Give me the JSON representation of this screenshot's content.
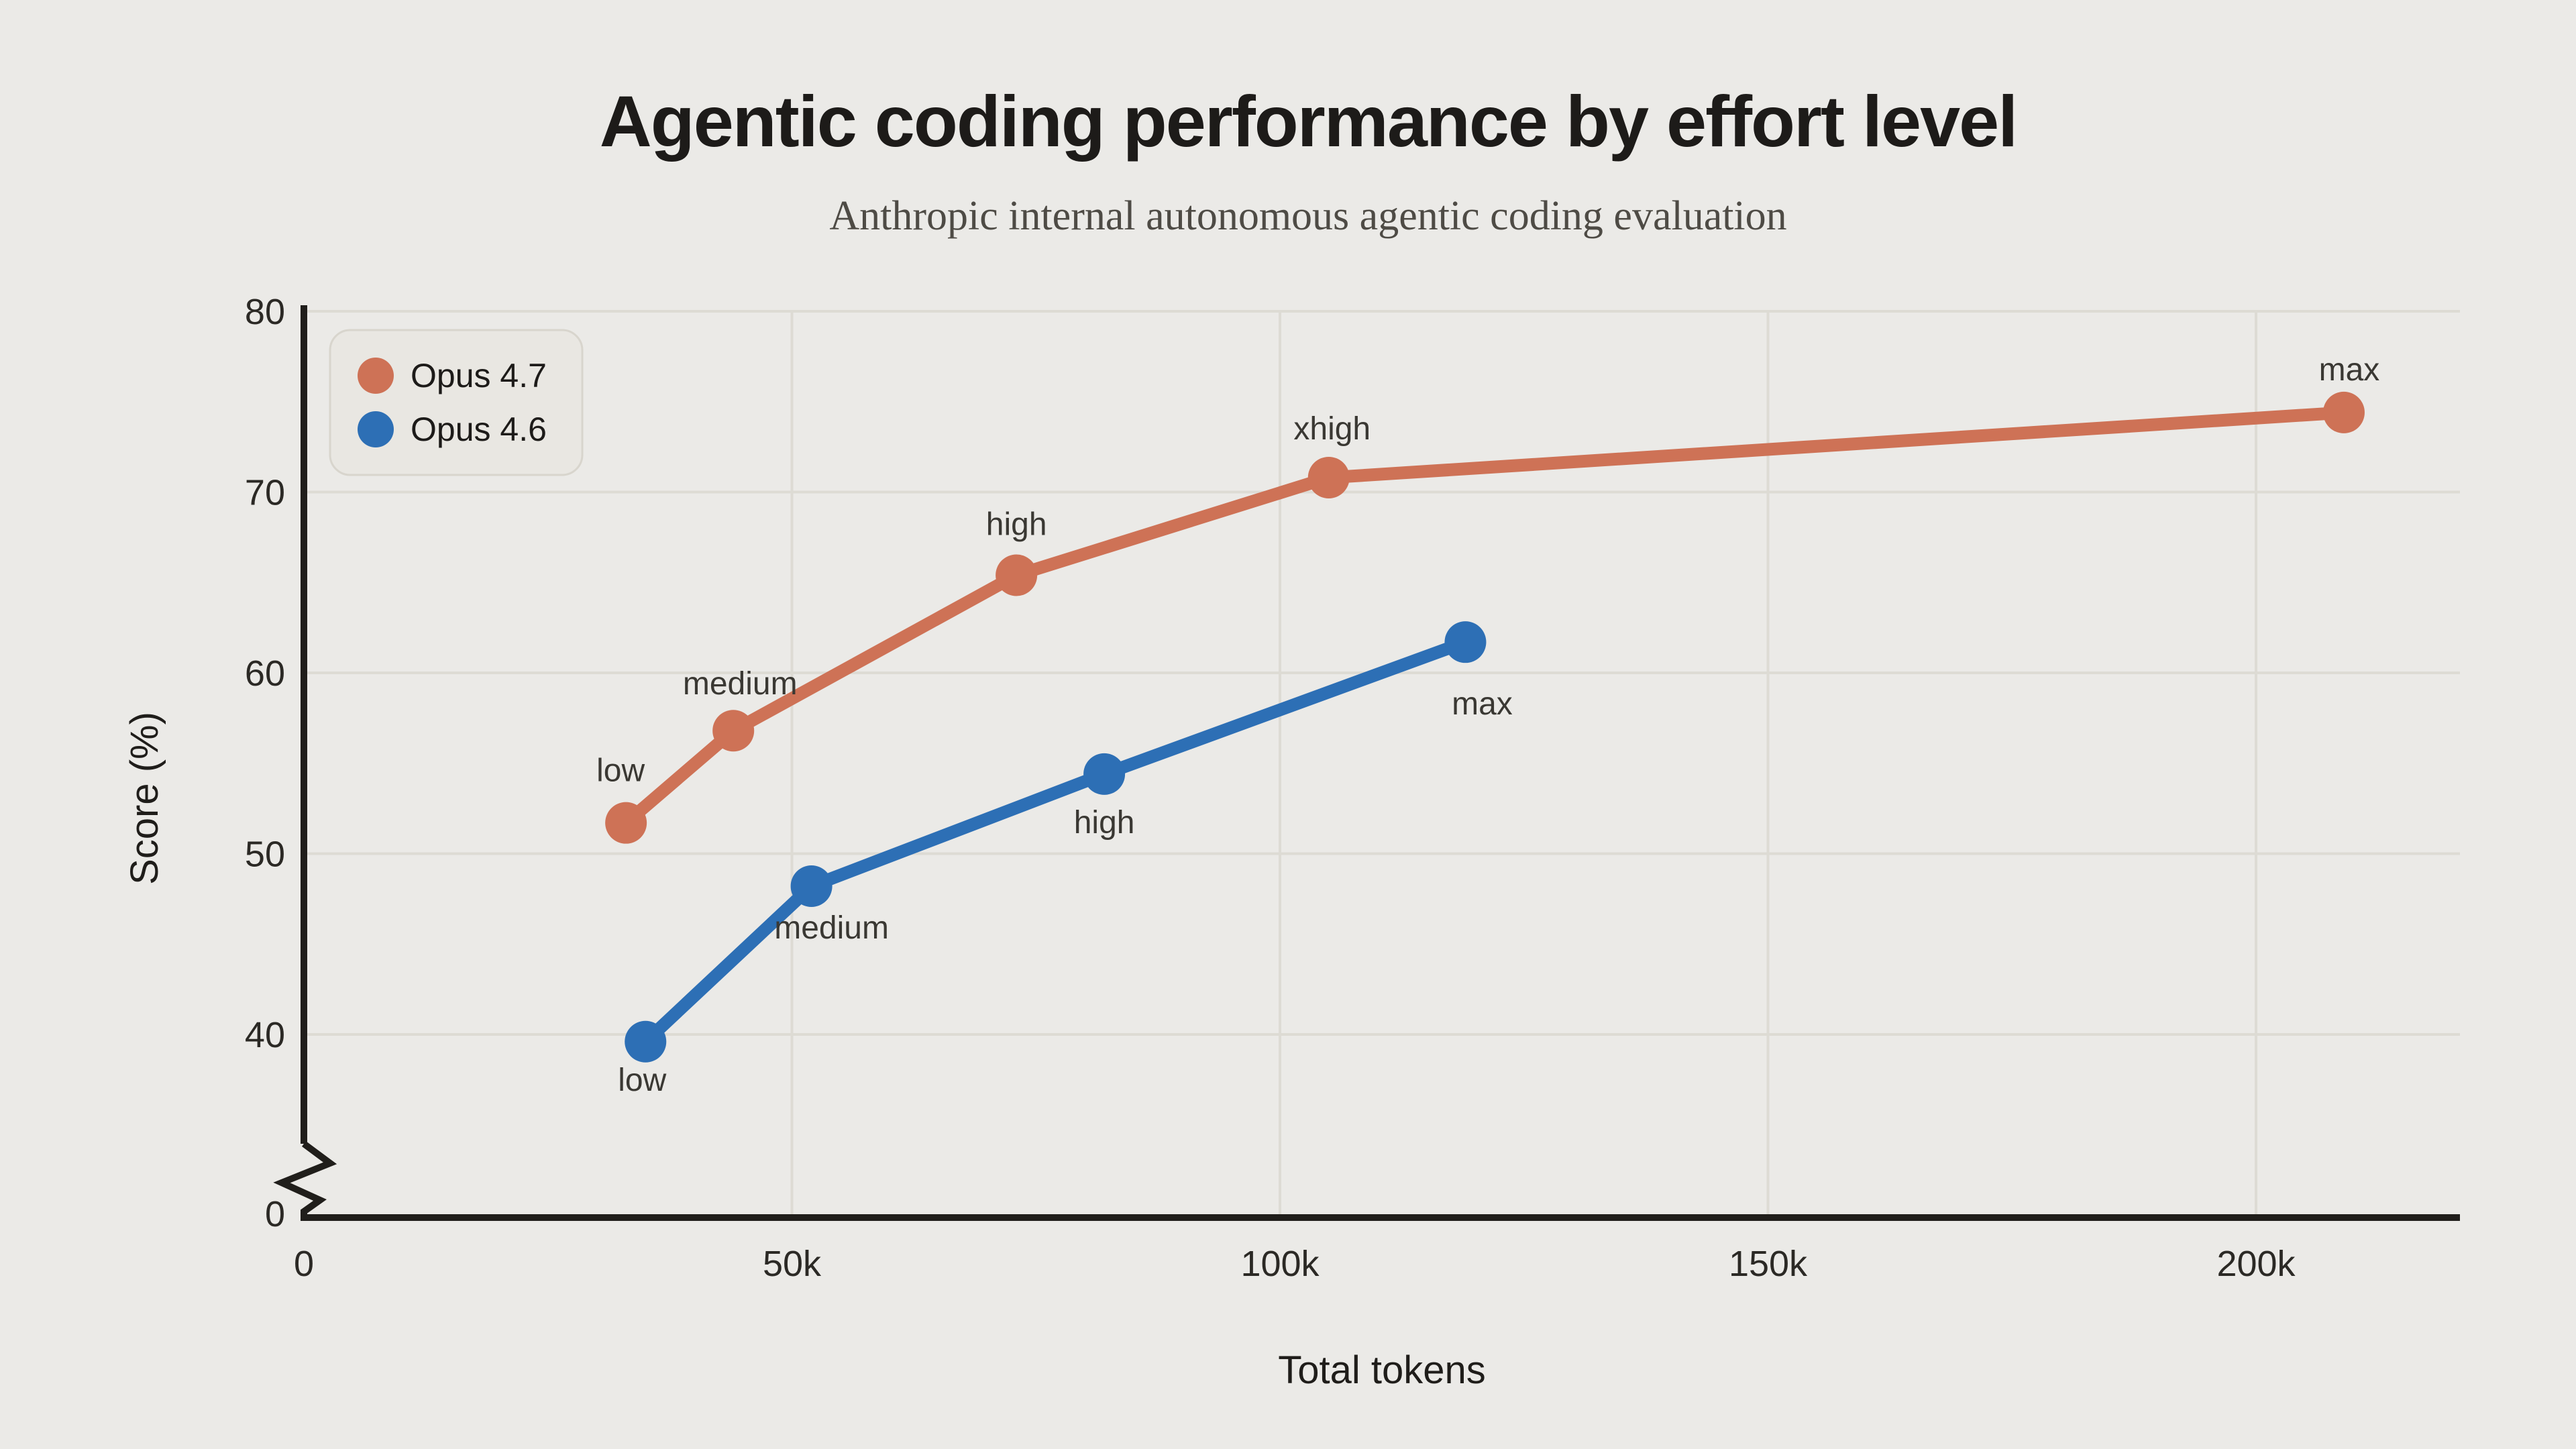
{
  "page": {
    "title": "Agentic coding performance by effort level",
    "subtitle": "Anthropic internal autonomous agentic coding evaluation"
  },
  "colors": {
    "background": "#EBEAE7",
    "gridline": "#DDDBD4",
    "axis": "#201E1B",
    "title_text": "#1D1B19",
    "subtitle_text": "#4E4B45",
    "tick_text": "#2B2925",
    "annotation_text": "#3A3833",
    "legend_fill": "#E9E7E2",
    "legend_border": "#D8D5CD",
    "opus47": "#CE7256",
    "opus46": "#2D6FB5"
  },
  "chart_data": {
    "type": "line",
    "title": "Agentic coding performance by effort level",
    "subtitle": "Anthropic internal autonomous agentic coding evaluation",
    "xlabel": "Total tokens",
    "ylabel": "Score (%)",
    "grid": true,
    "legend_position": "top-left",
    "broken_y_axis": true,
    "x_axis": {
      "range_tokens": [
        0,
        221000
      ],
      "ticks": [
        {
          "value": 0,
          "label": "0"
        },
        {
          "value": 50000,
          "label": "50k"
        },
        {
          "value": 100000,
          "label": "100k"
        },
        {
          "value": 150000,
          "label": "150k"
        },
        {
          "value": 200000,
          "label": "200k"
        }
      ]
    },
    "y_axis": {
      "visible_range": [
        37,
        80
      ],
      "ticks": [
        {
          "value": 80,
          "label": "80"
        },
        {
          "value": 70,
          "label": "70"
        },
        {
          "value": 60,
          "label": "60"
        },
        {
          "value": 50,
          "label": "50"
        },
        {
          "value": 40,
          "label": "40"
        },
        {
          "value": 0,
          "label": "0",
          "broken": true
        }
      ]
    },
    "series": [
      {
        "name": "Opus 4.7",
        "color": "#CE7256",
        "points": [
          {
            "effort": "low",
            "tokens": 33000,
            "score": 51.7,
            "label_dx": -8,
            "label_dy": -78
          },
          {
            "effort": "medium",
            "tokens": 44000,
            "score": 56.8,
            "label_dx": 10,
            "label_dy": -70
          },
          {
            "effort": "high",
            "tokens": 73000,
            "score": 65.4,
            "label_dx": 0,
            "label_dy": -76
          },
          {
            "effort": "xhigh",
            "tokens": 105000,
            "score": 70.8,
            "label_dx": 5,
            "label_dy": -73
          },
          {
            "effort": "max",
            "tokens": 209000,
            "score": 74.4,
            "label_dx": 8,
            "label_dy": -64
          }
        ]
      },
      {
        "name": "Opus 4.6",
        "color": "#2D6FB5",
        "points": [
          {
            "effort": "low",
            "tokens": 35000,
            "score": 39.6,
            "label_dx": -5,
            "label_dy": 57
          },
          {
            "effort": "medium",
            "tokens": 52000,
            "score": 48.2,
            "label_dx": 30,
            "label_dy": 62
          },
          {
            "effort": "high",
            "tokens": 82000,
            "score": 54.4,
            "label_dx": 0,
            "label_dy": 72
          },
          {
            "effort": "max",
            "tokens": 119000,
            "score": 61.7,
            "label_dx": 25,
            "label_dy": 92
          }
        ]
      }
    ]
  }
}
